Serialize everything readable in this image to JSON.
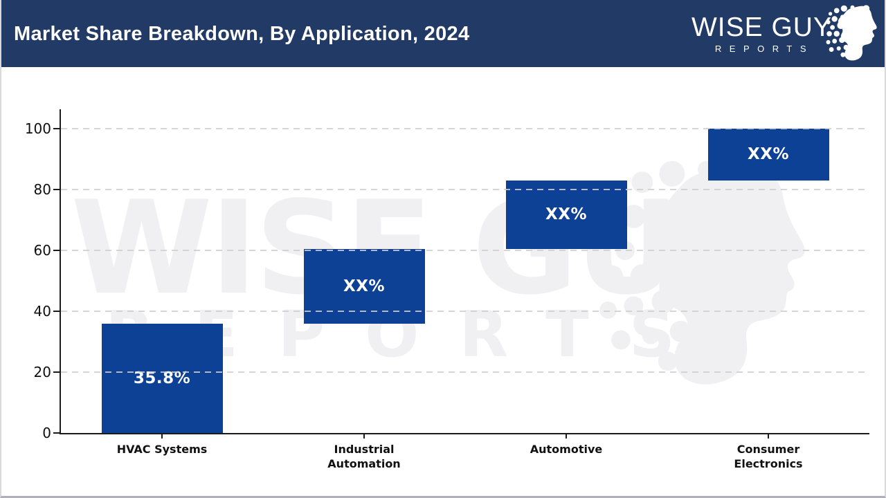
{
  "header": {
    "title": "Market Share Breakdown, By Application, 2024",
    "logo": {
      "name": "WISE GUY",
      "sub": "REPORTS"
    }
  },
  "watermark": {
    "line1": "WISE GUY",
    "line2": "REPORTS"
  },
  "colors": {
    "header_bg": "#213A66",
    "bar": "#0C4195",
    "bar_label": "#FFFFFF",
    "watermark": "#F0F0F2",
    "grid": "#D0D0D2",
    "axis": "#1A1A1A"
  },
  "chart_data": {
    "type": "bar",
    "subtype": "waterfall",
    "title": "Market Share Breakdown, By Application, 2024",
    "categories": [
      "HVAC Systems",
      "Industrial\nAutomation",
      "Automotive",
      "Consumer\nElectronics"
    ],
    "segments": [
      {
        "category": "HVAC Systems",
        "start": 0,
        "end": 35.8,
        "value": 35.8,
        "label": "35.8%"
      },
      {
        "category": "Industrial Automation",
        "start": 35.8,
        "end": 60.5,
        "value": 24.7,
        "label": "XX%"
      },
      {
        "category": "Automotive",
        "start": 60.5,
        "end": 83.0,
        "value": 22.5,
        "label": "XX%"
      },
      {
        "category": "Consumer Electronics",
        "start": 83.0,
        "end": 100.0,
        "value": 17.0,
        "label": "XX%"
      }
    ],
    "xlabel": "",
    "ylabel": "",
    "yticks": [
      0,
      20,
      40,
      60,
      80,
      100
    ],
    "ylim": [
      0,
      106
    ],
    "grid": "dashed-horizontal",
    "legend": "none",
    "bar_color": "#0C4195",
    "bar_label_color": "#FFFFFF"
  }
}
